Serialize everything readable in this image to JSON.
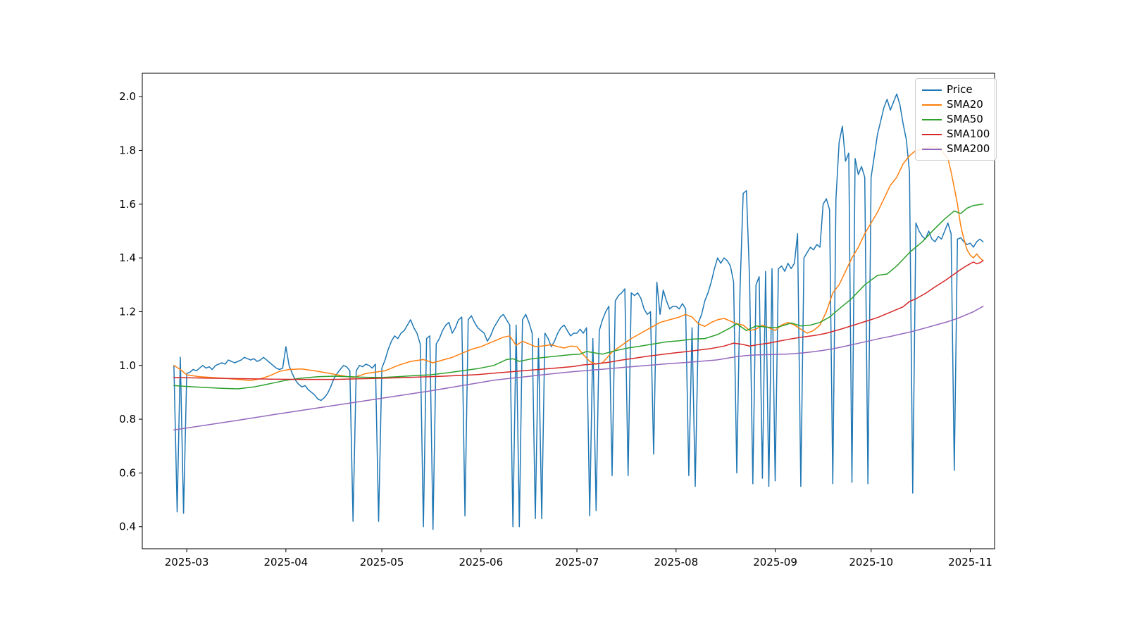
{
  "chart_data": {
    "type": "line",
    "title": "",
    "xlabel": "",
    "ylabel": "",
    "grid": false,
    "legend_position": "upper right",
    "x_tick_labels": [
      "2025-03",
      "2025-04",
      "2025-05",
      "2025-06",
      "2025-07",
      "2025-08",
      "2025-09",
      "2025-10",
      "2025-11"
    ],
    "x_tick_positions_day": [
      4,
      35,
      65,
      96,
      126,
      157,
      188,
      218,
      249
    ],
    "y_tick_labels": [
      "0.4",
      "0.6",
      "0.8",
      "1.0",
      "1.2",
      "1.4",
      "1.6",
      "1.8",
      "2.0"
    ],
    "y_ticks": [
      0.4,
      0.6,
      0.8,
      1.0,
      1.2,
      1.4,
      1.6,
      1.8,
      2.0
    ],
    "xlim_day": [
      -9.9,
      256.6
    ],
    "ylim": [
      0.318,
      2.087
    ],
    "x_axis_note": "daily points; day 0 = 2025-02-25, last day = 2025-11-05",
    "series": [
      {
        "name": "Price",
        "color": "#1f77b4",
        "x_start_day": 0,
        "x_step": 1,
        "values": [
          1.0,
          0.455,
          1.03,
          0.45,
          0.97,
          0.975,
          0.985,
          0.98,
          0.99,
          1.0,
          0.99,
          0.995,
          0.985,
          1.0,
          1.005,
          1.01,
          1.005,
          1.02,
          1.015,
          1.01,
          1.015,
          1.02,
          1.03,
          1.025,
          1.02,
          1.025,
          1.015,
          1.02,
          1.03,
          1.02,
          1.01,
          1.0,
          0.99,
          0.985,
          0.99,
          1.07,
          1.0,
          0.97,
          0.945,
          0.93,
          0.92,
          0.925,
          0.91,
          0.9,
          0.89,
          0.875,
          0.87,
          0.88,
          0.895,
          0.92,
          0.95,
          0.97,
          0.985,
          1.0,
          0.995,
          0.98,
          0.42,
          0.98,
          1.0,
          0.995,
          1.005,
          1.0,
          0.99,
          1.005,
          0.42,
          0.99,
          1.02,
          1.06,
          1.09,
          1.11,
          1.1,
          1.12,
          1.13,
          1.15,
          1.17,
          1.14,
          1.12,
          1.08,
          0.4,
          1.1,
          1.11,
          0.39,
          1.08,
          1.1,
          1.13,
          1.15,
          1.16,
          1.12,
          1.14,
          1.17,
          1.18,
          0.44,
          1.17,
          1.185,
          1.16,
          1.14,
          1.13,
          1.12,
          1.09,
          1.11,
          1.14,
          1.16,
          1.18,
          1.19,
          1.17,
          1.15,
          0.4,
          1.15,
          0.4,
          1.17,
          1.19,
          1.16,
          1.12,
          0.43,
          1.1,
          0.43,
          1.12,
          1.1,
          1.07,
          1.09,
          1.12,
          1.14,
          1.15,
          1.13,
          1.11,
          1.12,
          1.12,
          1.135,
          1.12,
          1.14,
          0.44,
          1.1,
          0.46,
          1.13,
          1.17,
          1.2,
          1.22,
          0.59,
          1.24,
          1.26,
          1.27,
          1.285,
          0.59,
          1.27,
          1.26,
          1.27,
          1.25,
          1.21,
          1.19,
          1.2,
          0.67,
          1.31,
          1.19,
          1.28,
          1.24,
          1.21,
          1.22,
          1.22,
          1.21,
          1.23,
          1.21,
          0.59,
          1.14,
          0.55,
          1.16,
          1.19,
          1.24,
          1.27,
          1.31,
          1.36,
          1.4,
          1.38,
          1.4,
          1.39,
          1.37,
          1.31,
          0.6,
          1.28,
          1.64,
          1.65,
          1.32,
          0.56,
          1.3,
          1.33,
          0.58,
          1.35,
          0.55,
          1.36,
          0.57,
          1.36,
          1.37,
          1.35,
          1.38,
          1.36,
          1.38,
          1.49,
          0.55,
          1.4,
          1.42,
          1.44,
          1.43,
          1.45,
          1.44,
          1.6,
          1.62,
          1.58,
          0.56,
          1.62,
          1.83,
          1.89,
          1.76,
          1.79,
          0.565,
          1.77,
          1.71,
          1.74,
          1.7,
          0.56,
          1.7,
          1.78,
          1.86,
          1.91,
          1.96,
          1.99,
          1.95,
          1.98,
          2.01,
          1.97,
          1.9,
          1.84,
          1.72,
          0.525,
          1.53,
          1.5,
          1.48,
          1.47,
          1.5,
          1.47,
          1.46,
          1.48,
          1.47,
          1.5,
          1.53,
          1.49,
          0.61,
          1.47,
          1.475,
          1.46,
          1.45,
          1.455,
          1.44,
          1.46,
          1.47,
          1.46
        ]
      },
      {
        "name": "SMA20",
        "color": "#ff7f0e",
        "x": [
          0,
          2,
          4,
          8,
          12,
          16,
          20,
          24,
          27,
          30,
          33,
          36,
          40,
          44,
          48,
          52,
          56,
          58,
          60,
          63,
          66,
          70,
          74,
          78,
          81,
          84,
          87,
          90,
          93,
          96,
          100,
          103,
          105,
          107,
          109,
          111,
          113,
          115,
          118,
          120,
          122,
          124,
          126,
          128,
          130,
          132,
          134,
          137,
          140,
          143,
          146,
          149,
          152,
          155,
          158,
          160,
          162,
          164,
          166,
          168,
          170,
          172,
          174,
          176,
          178,
          180,
          182,
          184,
          186,
          188,
          190,
          192,
          194,
          196,
          198,
          200,
          202,
          204,
          206,
          208,
          210,
          212,
          214,
          216,
          218,
          220,
          222,
          224,
          226,
          228,
          230,
          232,
          234,
          236,
          238,
          240,
          242,
          243,
          244,
          245,
          246,
          247,
          248,
          249,
          250,
          251,
          252,
          253
        ],
        "values": [
          1.0,
          0.985,
          0.965,
          0.958,
          0.955,
          0.952,
          0.948,
          0.944,
          0.95,
          0.962,
          0.978,
          0.985,
          0.987,
          0.98,
          0.972,
          0.963,
          0.955,
          0.962,
          0.97,
          0.975,
          0.98,
          1.0,
          1.015,
          1.022,
          1.01,
          1.02,
          1.03,
          1.045,
          1.06,
          1.07,
          1.09,
          1.105,
          1.11,
          1.075,
          1.09,
          1.08,
          1.07,
          1.072,
          1.077,
          1.07,
          1.065,
          1.072,
          1.07,
          1.04,
          1.015,
          1.005,
          1.01,
          1.05,
          1.075,
          1.1,
          1.12,
          1.14,
          1.16,
          1.17,
          1.18,
          1.19,
          1.18,
          1.155,
          1.145,
          1.16,
          1.17,
          1.175,
          1.165,
          1.155,
          1.15,
          1.13,
          1.135,
          1.15,
          1.14,
          1.13,
          1.15,
          1.16,
          1.15,
          1.135,
          1.12,
          1.13,
          1.15,
          1.2,
          1.27,
          1.3,
          1.35,
          1.4,
          1.44,
          1.49,
          1.53,
          1.57,
          1.62,
          1.67,
          1.7,
          1.75,
          1.78,
          1.8,
          1.805,
          1.81,
          1.815,
          1.8,
          1.77,
          1.72,
          1.66,
          1.6,
          1.52,
          1.47,
          1.43,
          1.41,
          1.4,
          1.415,
          1.4,
          1.39
        ]
      },
      {
        "name": "SMA50",
        "color": "#2ca02c",
        "x": [
          0,
          5,
          10,
          15,
          20,
          25,
          30,
          35,
          40,
          45,
          50,
          55,
          60,
          65,
          70,
          75,
          80,
          85,
          90,
          95,
          100,
          104,
          106,
          108,
          112,
          116,
          120,
          124,
          127,
          129,
          131,
          134,
          138,
          142,
          146,
          150,
          154,
          158,
          162,
          166,
          170,
          174,
          176,
          179,
          182,
          185,
          188,
          191,
          193,
          196,
          199,
          202,
          205,
          208,
          212,
          216,
          220,
          223,
          226,
          230,
          234,
          238,
          241,
          244,
          246,
          248,
          250,
          253
        ],
        "values": [
          0.925,
          0.921,
          0.918,
          0.915,
          0.913,
          0.92,
          0.932,
          0.945,
          0.953,
          0.958,
          0.96,
          0.958,
          0.956,
          0.955,
          0.958,
          0.962,
          0.965,
          0.972,
          0.98,
          0.988,
          1.0,
          1.022,
          1.025,
          1.015,
          1.025,
          1.03,
          1.035,
          1.04,
          1.042,
          1.052,
          1.048,
          1.042,
          1.055,
          1.065,
          1.072,
          1.08,
          1.088,
          1.092,
          1.098,
          1.1,
          1.115,
          1.14,
          1.155,
          1.13,
          1.147,
          1.143,
          1.14,
          1.15,
          1.158,
          1.147,
          1.15,
          1.16,
          1.18,
          1.21,
          1.25,
          1.3,
          1.335,
          1.34,
          1.37,
          1.42,
          1.46,
          1.51,
          1.545,
          1.575,
          1.565,
          1.585,
          1.595,
          1.6
        ]
      },
      {
        "name": "SMA100",
        "color": "#d62728",
        "x": [
          0,
          10,
          20,
          30,
          40,
          50,
          60,
          70,
          80,
          90,
          95,
          100,
          105,
          110,
          115,
          120,
          125,
          128,
          132,
          136,
          140,
          144,
          148,
          152,
          156,
          160,
          164,
          168,
          172,
          175,
          178,
          180,
          183,
          186,
          189,
          192,
          195,
          198,
          201,
          204,
          208,
          212,
          216,
          220,
          224,
          228,
          230,
          232,
          235,
          238,
          241,
          244,
          246,
          248,
          250,
          251,
          252,
          253
        ],
        "values": [
          0.955,
          0.953,
          0.951,
          0.949,
          0.948,
          0.948,
          0.951,
          0.954,
          0.958,
          0.963,
          0.966,
          0.971,
          0.976,
          0.981,
          0.986,
          0.991,
          0.996,
          1.002,
          1.006,
          1.012,
          1.02,
          1.027,
          1.034,
          1.04,
          1.046,
          1.051,
          1.057,
          1.063,
          1.072,
          1.083,
          1.078,
          1.072,
          1.078,
          1.083,
          1.09,
          1.097,
          1.103,
          1.108,
          1.113,
          1.12,
          1.133,
          1.148,
          1.163,
          1.178,
          1.198,
          1.218,
          1.238,
          1.248,
          1.268,
          1.292,
          1.315,
          1.34,
          1.357,
          1.372,
          1.385,
          1.378,
          1.382,
          1.39
        ]
      },
      {
        "name": "SMA200",
        "color": "#9467bd",
        "x": [
          0,
          10,
          20,
          30,
          40,
          50,
          60,
          70,
          80,
          90,
          95,
          100,
          105,
          110,
          115,
          120,
          125,
          130,
          135,
          140,
          145,
          150,
          155,
          160,
          165,
          170,
          173,
          176,
          179,
          182,
          185,
          188,
          191,
          194,
          197,
          200,
          203,
          206,
          209,
          212,
          215,
          218,
          221,
          224,
          227,
          230,
          233,
          236,
          239,
          242,
          245,
          248,
          250,
          251,
          252,
          253
        ],
        "values": [
          0.76,
          0.778,
          0.796,
          0.815,
          0.833,
          0.851,
          0.869,
          0.887,
          0.905,
          0.925,
          0.935,
          0.945,
          0.952,
          0.958,
          0.965,
          0.971,
          0.977,
          0.982,
          0.987,
          0.992,
          0.997,
          1.002,
          1.007,
          1.011,
          1.016,
          1.021,
          1.027,
          1.033,
          1.037,
          1.039,
          1.04,
          1.041,
          1.042,
          1.044,
          1.047,
          1.051,
          1.056,
          1.062,
          1.069,
          1.077,
          1.085,
          1.093,
          1.101,
          1.108,
          1.116,
          1.124,
          1.133,
          1.143,
          1.153,
          1.163,
          1.175,
          1.19,
          1.2,
          1.207,
          1.213,
          1.22
        ]
      }
    ]
  }
}
